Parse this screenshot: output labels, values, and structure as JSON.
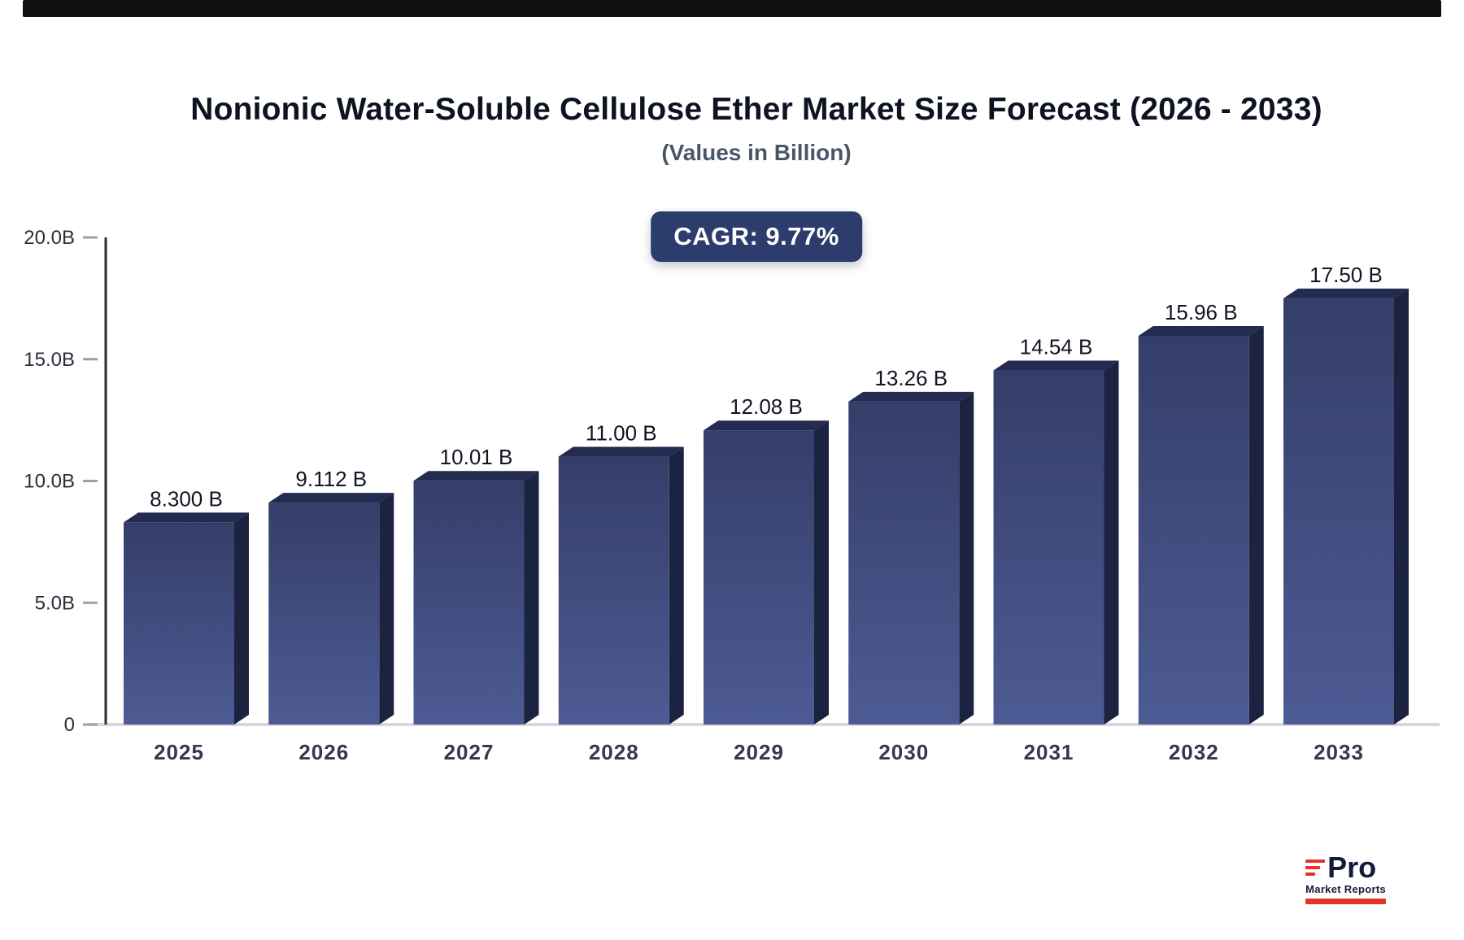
{
  "header": {
    "title": "Nonionic Water-Soluble Cellulose Ether Market Size Forecast (2026 - 2033)",
    "subtitle": "(Values in Billion)",
    "cagr_badge": "CAGR: 9.77%"
  },
  "chart_data": {
    "type": "bar",
    "title": "Nonionic Water-Soluble Cellulose Ether Market Size Forecast (2026 - 2033)",
    "subtitle": "(Values in Billion)",
    "cagr_percent": "9.77%",
    "categories": [
      "2025",
      "2026",
      "2027",
      "2028",
      "2029",
      "2030",
      "2031",
      "2032",
      "2033"
    ],
    "values": [
      8.3,
      9.112,
      10.01,
      11.0,
      12.08,
      13.26,
      14.54,
      15.96,
      17.5
    ],
    "value_labels": [
      "8.300 B",
      "9.112 B",
      "10.01 B",
      "11.00 B",
      "12.08 B",
      "13.26 B",
      "14.54 B",
      "15.96 B",
      "17.50 B"
    ],
    "ylabel": "",
    "xlabel": "",
    "ylim": [
      0,
      20
    ],
    "yticks": [
      {
        "value": 0,
        "label": "0"
      },
      {
        "value": 5,
        "label": "5.0B"
      },
      {
        "value": 10,
        "label": "10.0B"
      },
      {
        "value": 15,
        "label": "15.0B"
      },
      {
        "value": 20,
        "label": "20.0B"
      }
    ],
    "grid": false,
    "legend": false,
    "bar_style": "3d-extruded",
    "colors": {
      "bar_front_top": "#343e69",
      "bar_front_bottom": "#4d5b94",
      "bar_side": "#1b2340",
      "bar_top": "#232b50",
      "axis_line": "#2c2c3a",
      "baseline": "#d7d7de",
      "tick": "#9aa0ab",
      "value_label": "#101423",
      "category_label": "#333a4d",
      "ytick_label": "#2a2f3a",
      "badge_bg": "#2c3c6c",
      "badge_text": "#ffffff"
    }
  },
  "branding": {
    "name": "Pro",
    "subtext": "Market Reports",
    "accent": "#e63329"
  }
}
